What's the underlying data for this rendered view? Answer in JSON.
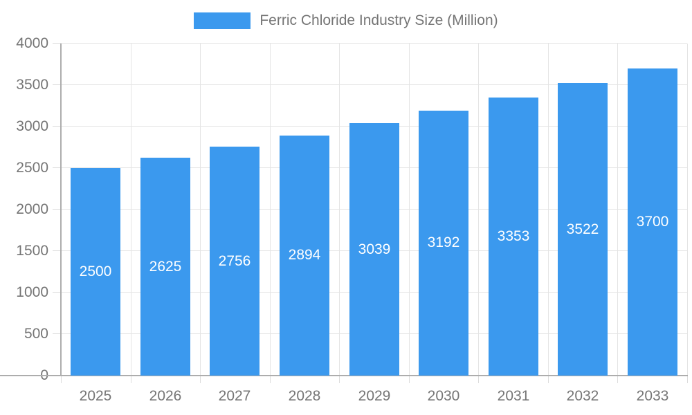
{
  "legend": {
    "label": "Ferric Chloride Industry Size (Million)"
  },
  "colors": {
    "background": "#FFFFFF",
    "bar": "#3B99EE",
    "axis_line": "#ADADAD",
    "gridline": "#E4E4E4",
    "tick": "#DCDCDC",
    "axis_text": "#757575",
    "value_text": "#FFFFFF"
  },
  "chart_data": {
    "type": "bar",
    "title": "Ferric Chloride Industry Size (Million)",
    "categories": [
      "2025",
      "2026",
      "2027",
      "2028",
      "2029",
      "2030",
      "2031",
      "2032",
      "2033"
    ],
    "values": [
      2500,
      2625,
      2756,
      2894,
      3039,
      3192,
      3353,
      3522,
      3700
    ],
    "xlabel": "",
    "ylabel": "",
    "ylim": [
      0,
      4000
    ],
    "ytick_step": 500,
    "ytick_labels": [
      "0",
      "500",
      "1000",
      "1500",
      "2000",
      "2500",
      "3000",
      "3500",
      "4000"
    ],
    "grid": true,
    "legend_position": "top",
    "value_labels": "inside-center"
  }
}
